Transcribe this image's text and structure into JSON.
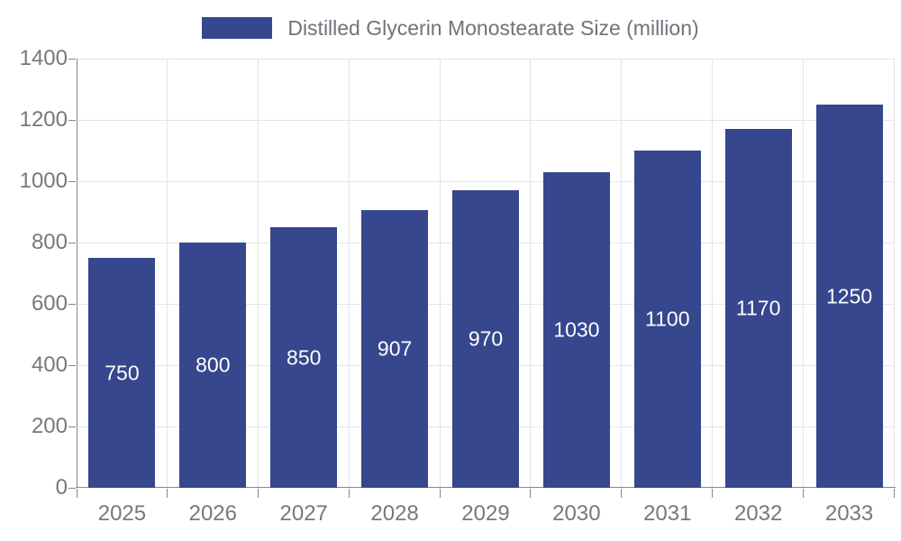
{
  "colors": {
    "bar": "#36478d",
    "bar_value_label": "#ffffff",
    "axis_line": "#84878c",
    "axis_text": "#75787d",
    "legend_text": "#6f737a",
    "gridline": "#e4e5ea",
    "background": "#ffffff"
  },
  "legend": {
    "label": "Distilled Glycerin Monostearate Size (million)"
  },
  "chart_data": {
    "type": "bar",
    "title": "Distilled Glycerin Monostearate Size (million)",
    "categories": [
      "2025",
      "2026",
      "2027",
      "2028",
      "2029",
      "2030",
      "2031",
      "2032",
      "2033"
    ],
    "values": [
      750,
      800,
      850,
      907,
      970,
      1030,
      1100,
      1170,
      1250
    ],
    "series_name": "Distilled Glycerin Monostearate Size (million)",
    "xlabel": "",
    "ylabel": "",
    "ylim": [
      0,
      1400
    ],
    "ytick_interval": 200,
    "ytick_labels": [
      "0",
      "200",
      "400",
      "600",
      "800",
      "1000",
      "1200",
      "1400"
    ],
    "grid": true,
    "legend_position": "top",
    "value_labels": "inside-middle"
  }
}
